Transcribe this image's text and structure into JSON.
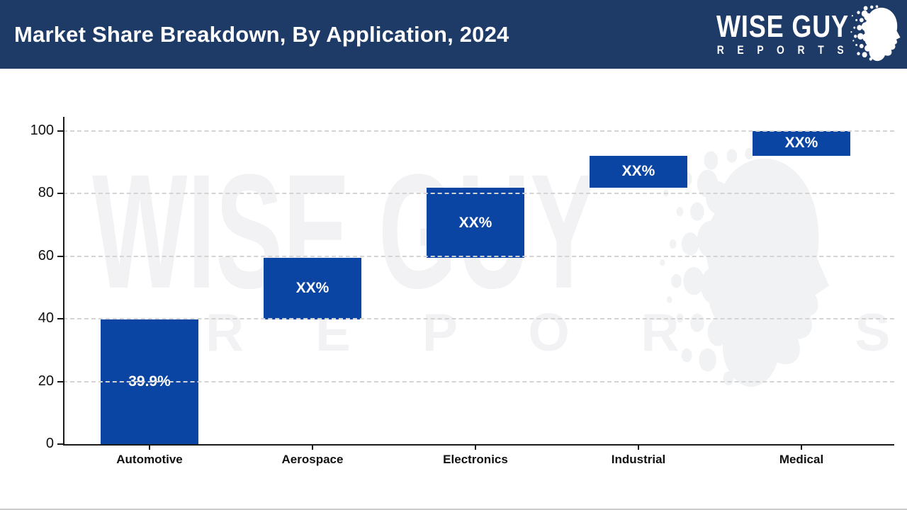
{
  "header": {
    "title": "Market Share Breakdown, By Application, 2024",
    "logo": {
      "line1": "WISE GUY",
      "line2": "R E P O R T S"
    }
  },
  "watermark": {
    "line1": "WISE GUY",
    "line2": "R E P O R T S"
  },
  "colors": {
    "header_bg": "#1E3A66",
    "bar": "#0A45A4",
    "bar_label": "#FFFFFF",
    "grid": "#D4D4D4",
    "axis": "#1A1A1A",
    "watermark": "#F1F2F4"
  },
  "chart_data": {
    "type": "bar",
    "subtype": "waterfall",
    "title": "Market Share Breakdown, By Application, 2024",
    "categories": [
      "Automotive",
      "Aerospace",
      "Electronics",
      "Industrial",
      "Medical"
    ],
    "segments": [
      {
        "category": "Automotive",
        "start": 0,
        "end": 39.9,
        "label": "39.9%"
      },
      {
        "category": "Aerospace",
        "start": 39.9,
        "end": 59.4,
        "label": "XX%"
      },
      {
        "category": "Electronics",
        "start": 59.4,
        "end": 81.9,
        "label": "XX%"
      },
      {
        "category": "Industrial",
        "start": 81.9,
        "end": 92.1,
        "label": "XX%"
      },
      {
        "category": "Medical",
        "start": 92.1,
        "end": 100.0,
        "label": "XX%"
      }
    ],
    "yticks": [
      0,
      20,
      40,
      60,
      80,
      100
    ],
    "ylim": [
      0,
      104.5
    ],
    "xlabel": "",
    "ylabel": "",
    "grid": "dashed-horizontal",
    "legend_position": "none"
  }
}
